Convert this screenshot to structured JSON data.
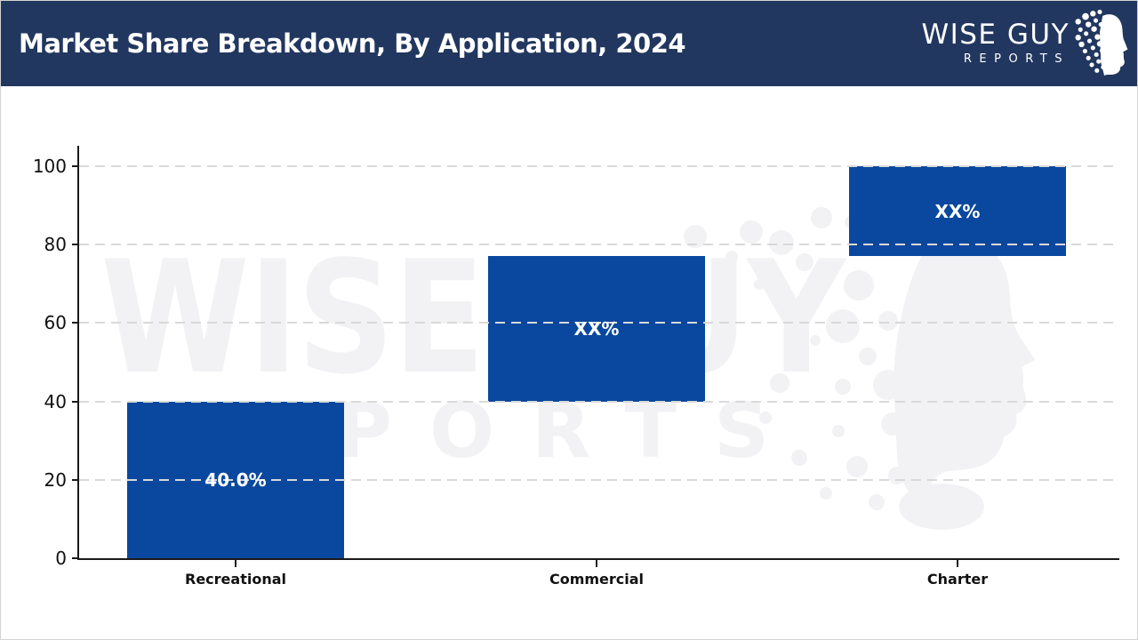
{
  "header": {
    "title": "Market Share Breakdown, By Application, 2024",
    "logo": {
      "line1": "WISE GUY",
      "line2": "REPORTS"
    }
  },
  "watermark": {
    "line1": "WISE GUY",
    "line2": "REPORTS"
  },
  "chart_data": {
    "type": "bar",
    "subtype": "waterfall",
    "title": "Market Share Breakdown, By Application, 2024",
    "categories": [
      "Recreational",
      "Commercial",
      "Charter"
    ],
    "segments": [
      {
        "category": "Recreational",
        "start": 0,
        "end": 40,
        "label": "40.0%"
      },
      {
        "category": "Commercial",
        "start": 40,
        "end": 77,
        "label": "XX%"
      },
      {
        "category": "Charter",
        "start": 77,
        "end": 100,
        "label": "XX%"
      }
    ],
    "ylim": [
      0,
      100
    ],
    "yticks": [
      0,
      20,
      40,
      60,
      80,
      100
    ],
    "xlabel": "",
    "ylabel": "",
    "grid": "horizontal-dashed",
    "legend": "none",
    "bar_color": "#09489e",
    "bar_label_color": "#ffffff"
  },
  "colors": {
    "header_bg": "#22375f",
    "bar_blue": "#09489e",
    "axis": "#1a1a1a",
    "gridline": "#d9d9d9",
    "watermark_gray": "#f2f2f4"
  }
}
